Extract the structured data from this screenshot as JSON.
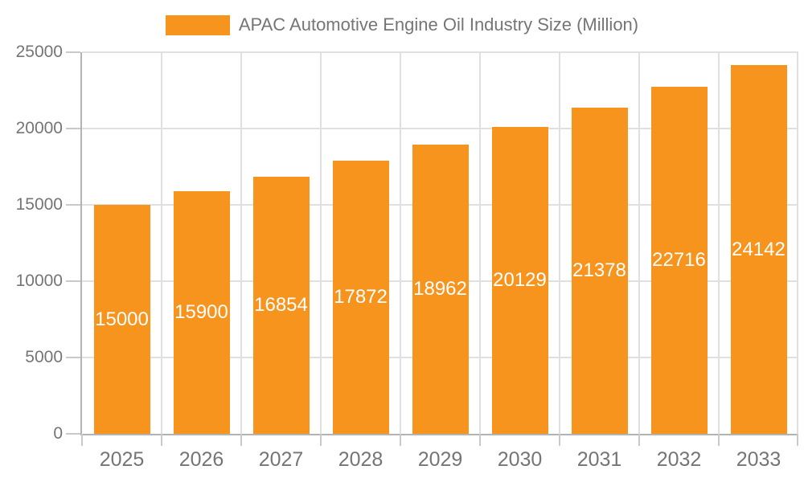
{
  "chart_data": {
    "type": "bar",
    "title": "APAC Automotive Engine Oil Industry Size (Million)",
    "categories": [
      "2025",
      "2026",
      "2027",
      "2028",
      "2029",
      "2030",
      "2031",
      "2032",
      "2033"
    ],
    "values": [
      15000,
      15900,
      16854,
      17872,
      18962,
      20129,
      21378,
      22716,
      24142
    ],
    "xlabel": "",
    "ylabel": "",
    "ylim": [
      0,
      25000
    ],
    "yticks": [
      0,
      5000,
      10000,
      15000,
      20000,
      25000
    ],
    "grid": "horizontal and vertical light gray gridlines",
    "legend_position": "top-center",
    "value_labels": "white, centered inside bars",
    "colors": {
      "bar": "#F7941E",
      "bar_label_text": "#FFFFFF",
      "axis_text": "#757575",
      "legend_text": "#757575",
      "gridline": "#E0E0E0",
      "axis_line": "#B3B3B3",
      "tick_mark": "#C9C9C9",
      "background": "#FFFFFF"
    }
  }
}
